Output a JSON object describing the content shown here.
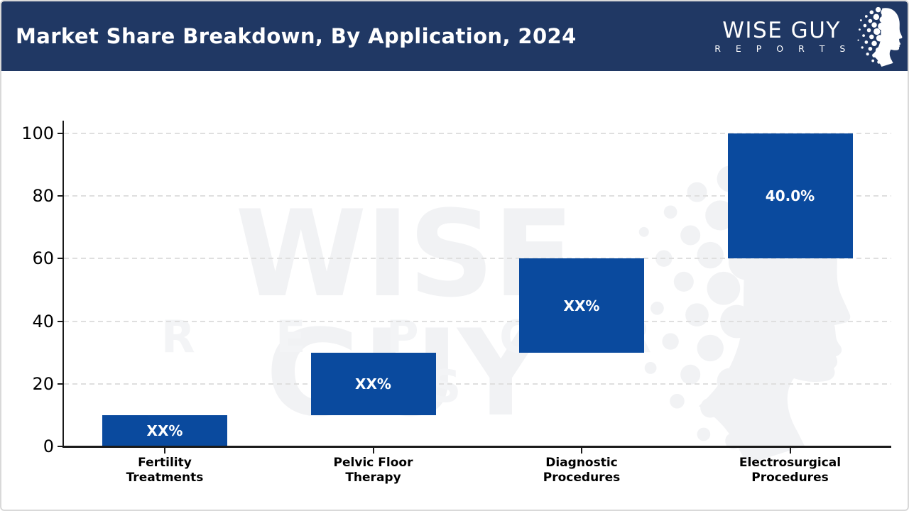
{
  "header": {
    "title": "Market Share Breakdown, By Application, 2024",
    "bg_color": "#203864",
    "logo": {
      "brand_line1": "WISE GUY",
      "brand_line2": "R E P O R T S"
    }
  },
  "watermark": {
    "line1": "WISE GUY",
    "line2": "R E P O R T S"
  },
  "chart_data": {
    "type": "bar",
    "variant": "waterfall-style floating segments",
    "title": "Market Share Breakdown, By Application, 2024",
    "categories": [
      "Fertility Treatments",
      "Pelvic Floor Therapy",
      "Diagnostic Procedures",
      "Electrosurgical Procedures"
    ],
    "category_label_lines": [
      [
        "Fertility",
        "Treatments"
      ],
      [
        "Pelvic Floor",
        "Therapy"
      ],
      [
        "Diagnostic",
        "Procedures"
      ],
      [
        "Electrosurgical",
        "Procedures"
      ]
    ],
    "segments": [
      {
        "category": "Fertility Treatments",
        "start": 0,
        "end": 10,
        "label": "XX%"
      },
      {
        "category": "Pelvic Floor Therapy",
        "start": 10,
        "end": 30,
        "label": "XX%"
      },
      {
        "category": "Diagnostic Procedures",
        "start": 30,
        "end": 60,
        "label": "XX%"
      },
      {
        "category": "Electrosurgical Procedures",
        "start": 60,
        "end": 100,
        "label": "40.0%"
      }
    ],
    "ylim": [
      0,
      100
    ],
    "yticks": [
      0,
      20,
      40,
      60,
      80,
      100
    ],
    "xlabel": "",
    "ylabel": "",
    "legend": "none",
    "grid": {
      "horizontal": true,
      "style": "dashed",
      "color": "#dfdfdf"
    },
    "colors": {
      "bar": "#0a4a9e",
      "bar_label_text": "#ffffff",
      "axis": "#1a1a1a",
      "header_bg": "#203864",
      "watermark": "#f1f2f4"
    }
  }
}
